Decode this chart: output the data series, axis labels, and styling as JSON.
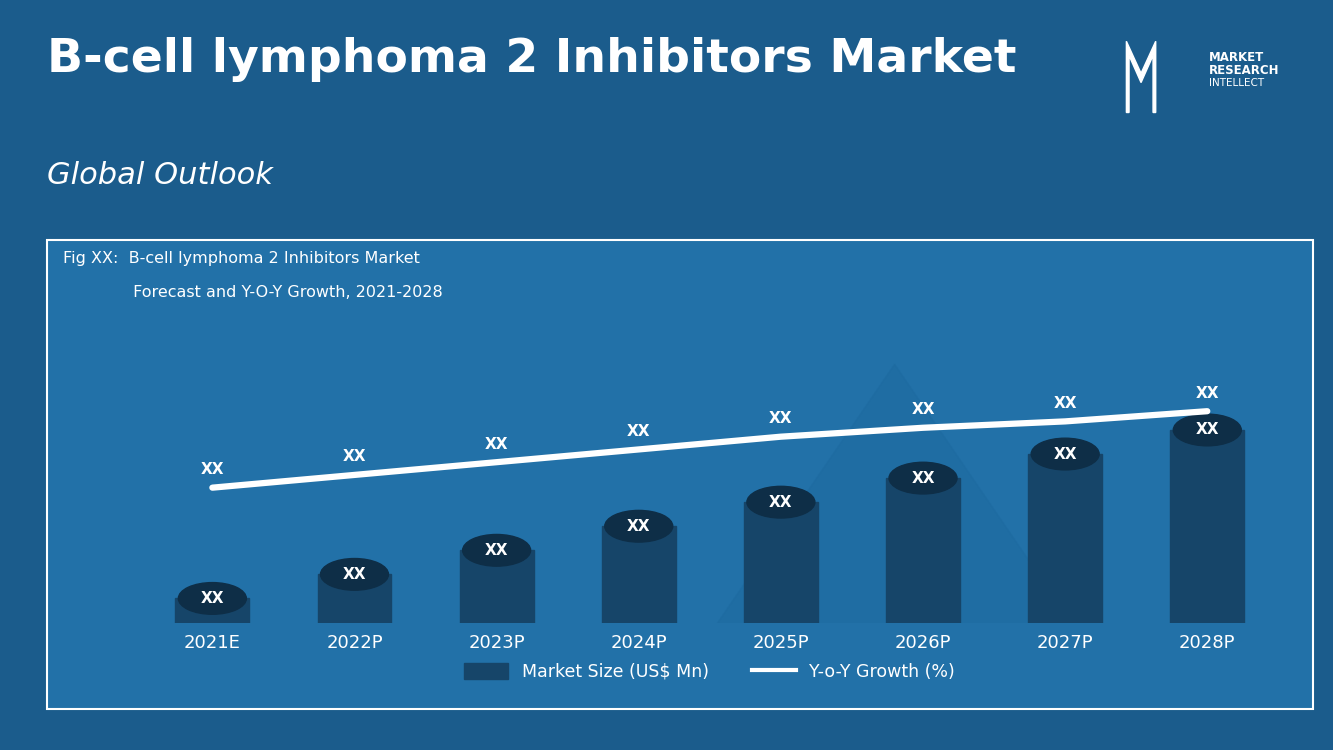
{
  "title": "B-cell lymphoma 2 Inhibitors Market",
  "subtitle": "Global Outlook",
  "fig_label_line1": "Fig XX:  B-cell lymphoma 2 Inhibitors Market",
  "fig_label_line2": "         Forecast and Y-O-Y Growth, 2021-2028",
  "categories": [
    "2021E",
    "2022P",
    "2023P",
    "2024P",
    "2025P",
    "2026P",
    "2027P",
    "2028P"
  ],
  "bar_values": [
    1,
    2,
    3,
    4,
    5,
    6,
    7,
    8
  ],
  "line_values": [
    1.0,
    2.0,
    3.0,
    4.0,
    5.0,
    5.7,
    6.2,
    7.0
  ],
  "bar_label": "XX",
  "line_top_label": "XX",
  "legend_bar": "Market Size (US$ Mn)",
  "legend_line": "Y-o-Y Growth (%)",
  "bg_color_outer": "#1b5c8c",
  "bg_color_chart": "#2271a8",
  "bar_color": "#164569",
  "circle_color": "#0e2e47",
  "line_color": "#ffffff",
  "text_color": "#ffffff",
  "title_fontsize": 34,
  "subtitle_fontsize": 22,
  "tick_fontsize": 13,
  "logo_text_line1": "MARKET",
  "logo_text_line2": "RESEARCH",
  "logo_text_line3": "INTELLECT"
}
